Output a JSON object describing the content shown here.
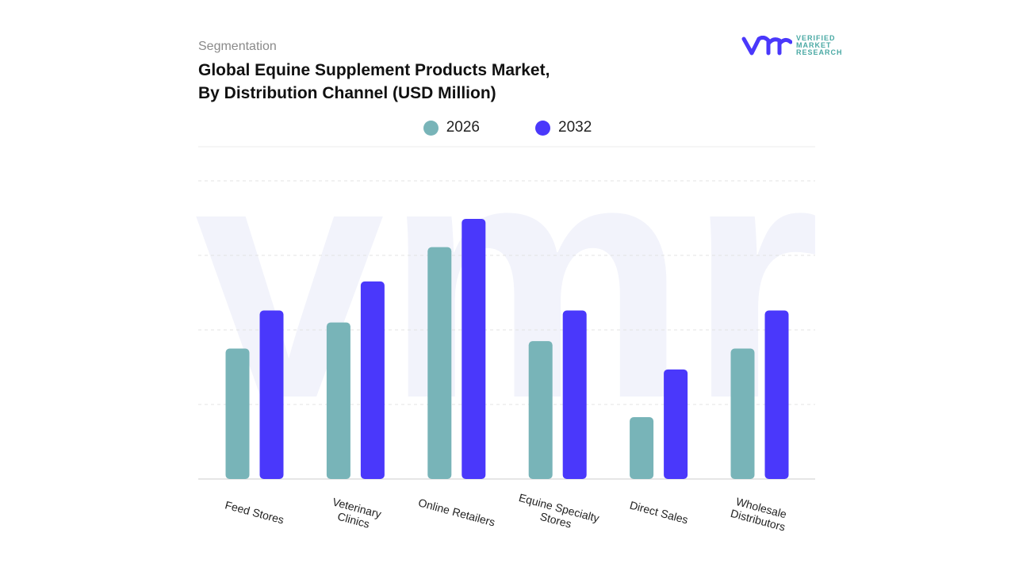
{
  "header": {
    "segment": "Segmentation",
    "title_line1": "Global Equine Supplement Products Market,",
    "title_line2": "By Distribution Channel (USD Million)"
  },
  "logo": {
    "text_line1": "VERIFIED",
    "text_line2": "MARKET",
    "text_line3": "RESEARCH"
  },
  "chart_data": {
    "type": "bar",
    "title": "Global Equine Supplement Products Market, By Distribution Channel (USD Million)",
    "categories": [
      "Feed Stores",
      "Veterinary\nClinics",
      "Online Retailers",
      "Equine Specialty\nStores",
      "Direct Sales",
      "Wholesale\nDistributors"
    ],
    "series": [
      {
        "name": "2026",
        "color": "#78b4b8",
        "values": [
          1.75,
          2.1,
          3.11,
          1.85,
          0.83,
          1.75
        ]
      },
      {
        "name": "2032",
        "color": "#4a38fb",
        "values": [
          2.26,
          2.65,
          3.49,
          2.26,
          1.47,
          2.26
        ]
      }
    ],
    "ylim": [
      0,
      4
    ],
    "y_axis_labels_shown": false,
    "grid": true,
    "legend": "top-center"
  }
}
